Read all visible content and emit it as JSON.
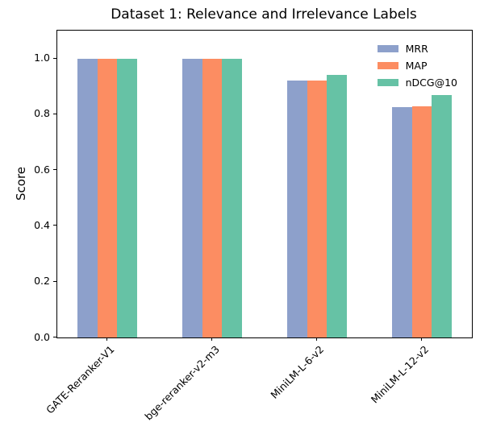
{
  "chart_data": {
    "type": "bar",
    "title": "Dataset 1: Relevance and Irrelevance Labels",
    "xlabel": "",
    "ylabel": "Score",
    "categories": [
      "GATE-Reranker-V1",
      "bge-reranker-v2-m3",
      "MiniLM-L-6-v2",
      "MiniLM-L-12-v2"
    ],
    "series": [
      {
        "name": "MRR",
        "color": "#8da0cb",
        "values": [
          1.0,
          1.0,
          0.92,
          0.825
        ]
      },
      {
        "name": "MAP",
        "color": "#fc8d62",
        "values": [
          1.0,
          1.0,
          0.92,
          0.83
        ]
      },
      {
        "name": "nDCG@10",
        "color": "#66c2a5",
        "values": [
          1.0,
          1.0,
          0.94,
          0.87
        ]
      }
    ],
    "ylim": [
      0,
      1.1
    ],
    "yticks": [
      "0.0",
      "0.2",
      "0.4",
      "0.6",
      "0.8",
      "1.0"
    ],
    "legend_position": "upper right",
    "grid": false
  }
}
